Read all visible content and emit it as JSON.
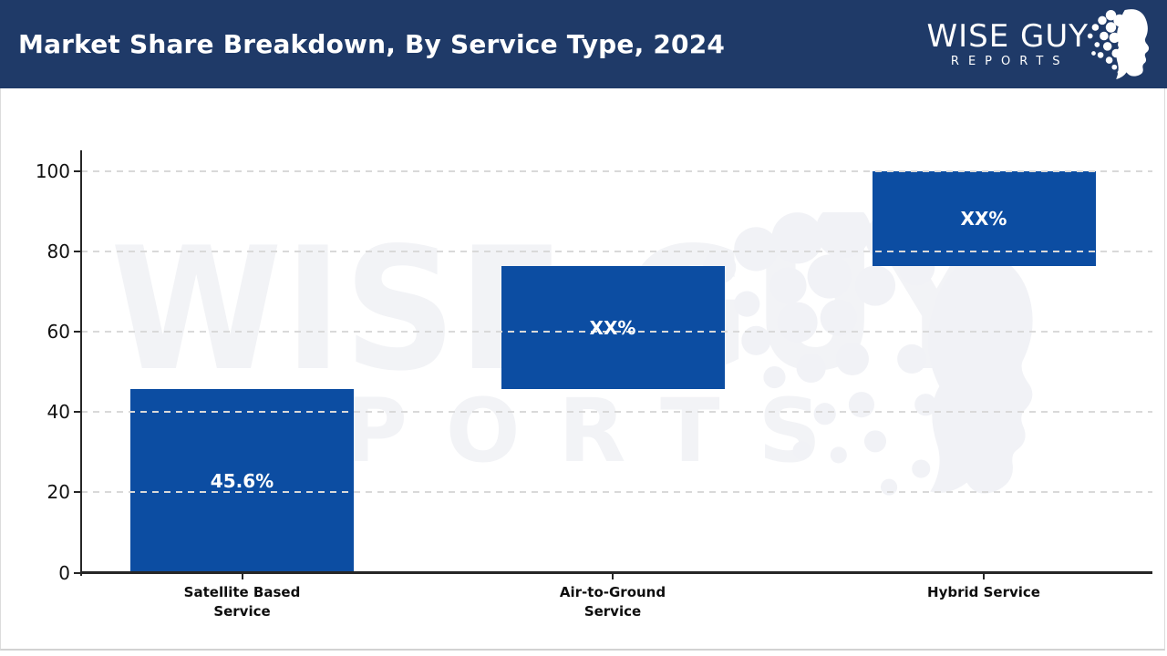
{
  "header": {
    "title": "Market Share Breakdown, By Service Type, 2024",
    "background_color": "#1f3a68",
    "logo": {
      "wordmark": "WISE GUY",
      "subtext": "REPORTS"
    }
  },
  "watermark": {
    "line1": "WISE GUY",
    "line2": "REPORTS"
  },
  "chart_data": {
    "type": "bar",
    "subtype": "floating-waterfall",
    "title": "Market Share Breakdown, By Service Type, 2024",
    "xlabel": "",
    "ylabel": "",
    "ylim": [
      0,
      105
    ],
    "yticks": [
      0,
      20,
      40,
      60,
      80,
      100
    ],
    "grid": "horizontal-dashed",
    "gridline_color": "#d9d9d9",
    "bar_color": "#0c4da2",
    "bar_label_color": "#ffffff",
    "bars": [
      {
        "category_lines": [
          "Satellite Based",
          "Service"
        ],
        "base": 0,
        "top": 45.6,
        "label": "45.6%"
      },
      {
        "category_lines": [
          "Air-to-Ground",
          "Service"
        ],
        "base": 45.6,
        "top": 76.3,
        "label": "XX%"
      },
      {
        "category_lines": [
          "Hybrid Service"
        ],
        "base": 76.3,
        "top": 100,
        "label": "XX%"
      }
    ]
  }
}
